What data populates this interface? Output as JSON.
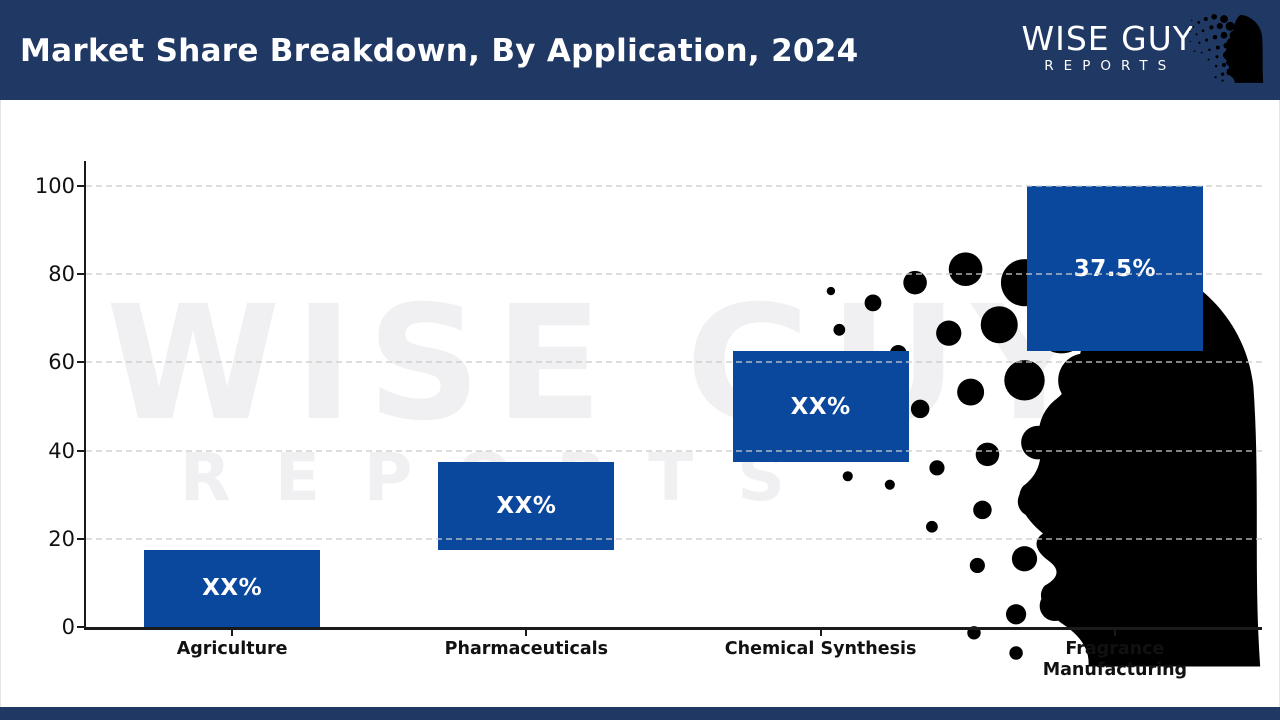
{
  "header": {
    "title": "Market Share Breakdown, By Application, 2024",
    "logo": {
      "line1": "WISE GUY",
      "line2": "REPORTS"
    }
  },
  "watermark": {
    "line1": "WISE GUY",
    "line2": "REPORTS"
  },
  "chart_data": {
    "type": "bar",
    "subtype": "waterfall-breakdown",
    "title": "Market Share Breakdown, By Application, 2024",
    "xlabel": "",
    "ylabel": "",
    "ylim": [
      0,
      100
    ],
    "yticks": [
      0,
      20,
      40,
      60,
      80,
      100
    ],
    "grid": "horizontal-dashed",
    "legend": "none",
    "categories": [
      "Agriculture",
      "Pharmaceuticals",
      "Chemical Synthesis",
      "Fragrance Manufacturing"
    ],
    "category_display": [
      [
        "Agriculture"
      ],
      [
        "Pharmaceuticals"
      ],
      [
        "Chemical Synthesis"
      ],
      [
        "Fragrance",
        "Manufacturing"
      ]
    ],
    "segments": [
      {
        "category": "Agriculture",
        "start": 0,
        "end": 17.5,
        "size": 17.5,
        "label": "XX%"
      },
      {
        "category": "Pharmaceuticals",
        "start": 17.5,
        "end": 37.5,
        "size": 20,
        "label": "XX%"
      },
      {
        "category": "Chemical Synthesis",
        "start": 37.5,
        "end": 62.5,
        "size": 25,
        "label": "XX%"
      },
      {
        "category": "Fragrance Manufacturing",
        "start": 62.5,
        "end": 100,
        "size": 37.5,
        "label": "37.5%"
      }
    ]
  },
  "colors": {
    "header_bg": "#1f3864",
    "footer_bg": "#1f3864",
    "bar": "#0a489e",
    "bar_label": "#ffffff",
    "grid": "#d9d9d9",
    "axis": "#1a1a1a",
    "watermark": "#f0f0f2"
  }
}
